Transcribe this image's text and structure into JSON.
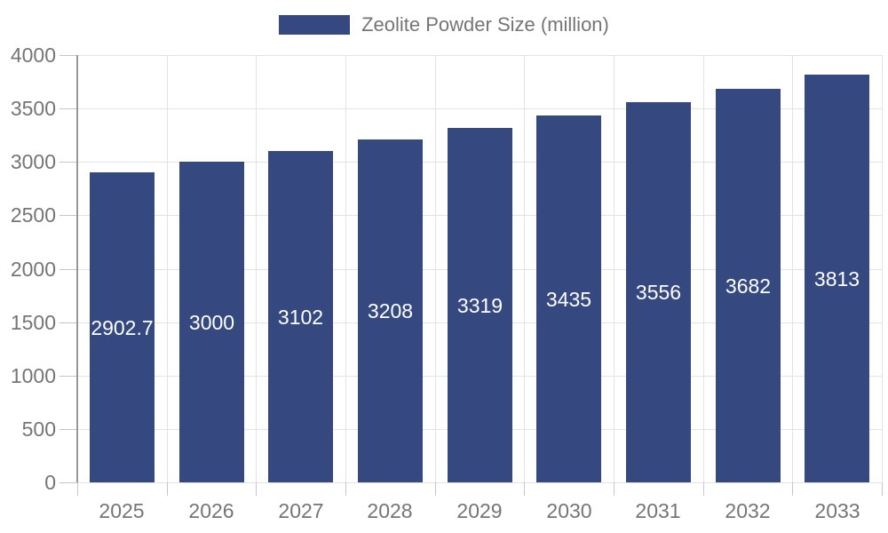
{
  "legend": {
    "label": "Zeolite Powder Size (million)",
    "swatch_color": "#354980"
  },
  "chart_data": {
    "type": "bar",
    "title": "",
    "xlabel": "",
    "ylabel": "",
    "categories": [
      "2025",
      "2026",
      "2027",
      "2028",
      "2029",
      "2030",
      "2031",
      "2032",
      "2033"
    ],
    "series": [
      {
        "name": "Zeolite Powder Size (million)",
        "values": [
          2902.7,
          3000,
          3102,
          3208,
          3319,
          3435,
          3556,
          3682,
          3813
        ],
        "value_labels": [
          "2902.7",
          "3000",
          "3102",
          "3208",
          "3319",
          "3435",
          "3556",
          "3682",
          "3813"
        ]
      }
    ],
    "ylim": [
      0,
      4000
    ],
    "yticks": [
      0,
      500,
      1000,
      1500,
      2000,
      2500,
      3000,
      3500,
      4000
    ],
    "grid": true,
    "legend_position": "top",
    "colors": {
      "bar": "#354980",
      "bar_label": "#ffffff",
      "axis_text": "#757575",
      "gridline": "#e3e3e3",
      "axis_line": "#979797"
    }
  }
}
